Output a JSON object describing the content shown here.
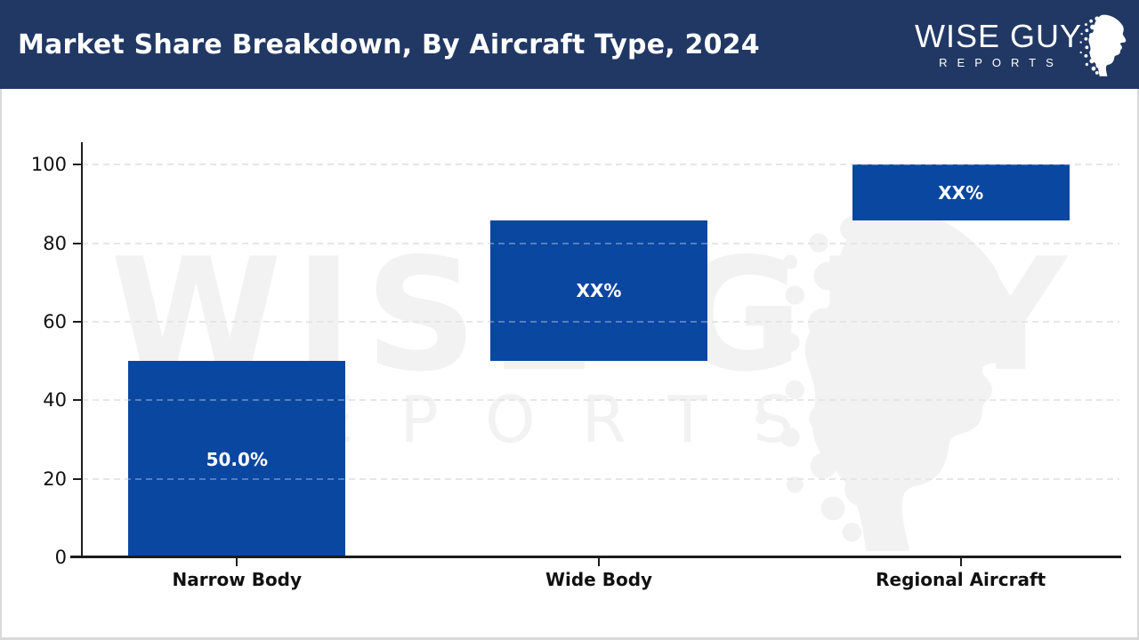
{
  "header": {
    "title": "Market Share Breakdown, By Aircraft Type, 2024",
    "logo": {
      "line1": "WISE GUY",
      "line2": "REPORTS"
    }
  },
  "watermark": {
    "line1": "WISE GUY",
    "line2": "REPORTS"
  },
  "chart_data": {
    "type": "bar",
    "title": "Market Share Breakdown, By Aircraft Type, 2024",
    "categories": [
      "Narrow Body",
      "Wide Body",
      "Regional Aircraft"
    ],
    "bars": [
      {
        "category": "Narrow Body",
        "label": "50.0%",
        "start": 0,
        "end": 50,
        "value": 50.0
      },
      {
        "category": "Wide Body",
        "label": "XX%",
        "start": 50,
        "end": 85.7,
        "value": 35.7
      },
      {
        "category": "Regional Aircraft",
        "label": "XX%",
        "start": 85.7,
        "end": 100,
        "value": 14.3
      }
    ],
    "yticks": [
      0,
      20,
      40,
      60,
      80,
      100
    ],
    "ylim": [
      0,
      105.7
    ],
    "xlabel": "",
    "ylabel": "",
    "grid": "dashed-horizontal",
    "legend": "none",
    "bar_label_color": "#ffffff"
  },
  "colors": {
    "header_bg": "#213864",
    "bar": "#0a47a1",
    "grid": "#dcdcdc",
    "axis": "#1c1c1c",
    "watermark": "#f2f2f3",
    "border": "#d9d9d9"
  }
}
